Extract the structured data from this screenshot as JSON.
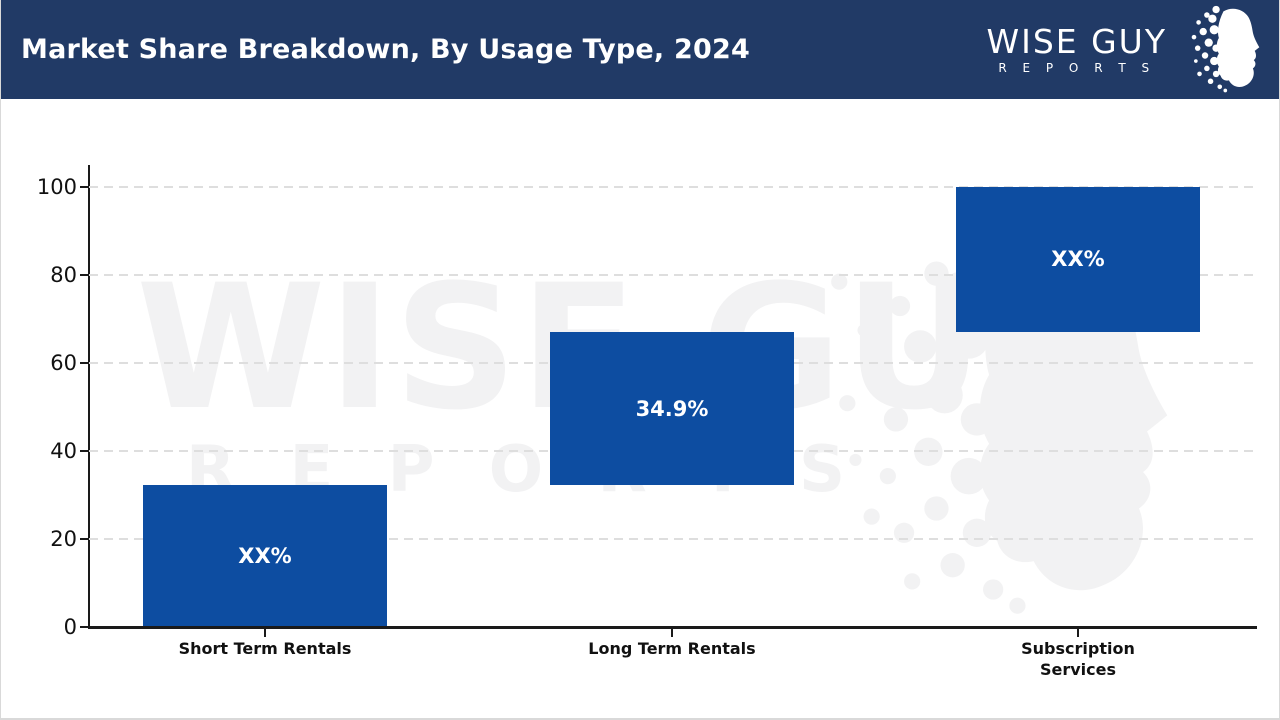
{
  "header": {
    "title": "Market Share Breakdown, By Usage Type, 2024",
    "logo": {
      "line1": "WISE GUY",
      "line2": "R E P O R T S"
    }
  },
  "watermark": {
    "line1": "WISE GUY",
    "line2": "R E P O R T S"
  },
  "chart_data": {
    "type": "bar",
    "variant": "floating-waterfall",
    "title": "Market Share Breakdown, By Usage Type, 2024",
    "xlabel": "",
    "ylabel": "",
    "categories": [
      "Short Term Rentals",
      "Long Term Rentals",
      "Subscription\nServices"
    ],
    "bars": [
      {
        "category": "Short Term Rentals",
        "start": 0,
        "end": 32.2,
        "label": "XX%"
      },
      {
        "category": "Long Term Rentals",
        "start": 32.2,
        "end": 67.1,
        "label": "34.9%"
      },
      {
        "category": "Subscription Services",
        "start": 67.1,
        "end": 100,
        "label": "XX%"
      }
    ],
    "yticks": [
      0,
      20,
      40,
      60,
      80,
      100
    ],
    "ylim": [
      0,
      105
    ],
    "grid": "horizontal-dashed",
    "legend": "none"
  },
  "colors": {
    "header_bg": "#213a66",
    "bar": "#0d4da1",
    "grid": "#dedede",
    "axis": "#1a1a1a",
    "value_label": "#ffffff",
    "watermark": "#f2f2f3"
  }
}
